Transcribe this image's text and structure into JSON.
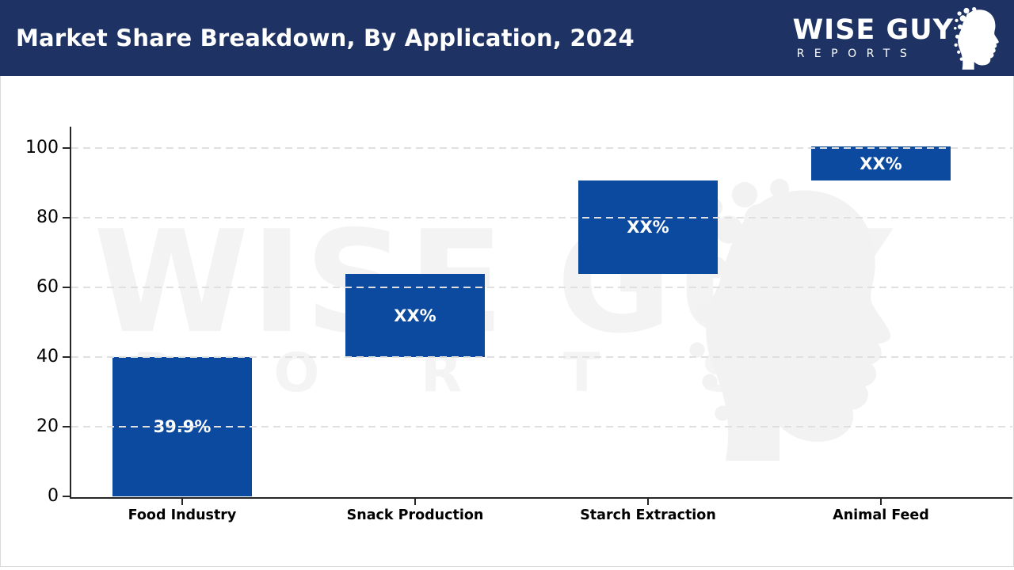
{
  "header": {
    "title": "Market Share Breakdown, By Application, 2024",
    "background": "#1e3363",
    "logo": {
      "line1": "WISE GUY",
      "line2": "REPORTS"
    }
  },
  "watermark": {
    "line1": "WISE GUY",
    "line2": "P O R T S",
    "color": "#f3f3f3"
  },
  "chart_data": {
    "type": "bar",
    "subtype": "waterfall",
    "title": "Market Share Breakdown, By Application, 2024",
    "categories": [
      "Food Industry",
      "Snack Production",
      "Starch Extraction",
      "Animal Feed"
    ],
    "segments": [
      {
        "category": "Food Industry",
        "start": 0,
        "end": 39.9,
        "label": "39.9%"
      },
      {
        "category": "Snack Production",
        "start": 39.9,
        "end": 63.9,
        "label": "XX%"
      },
      {
        "category": "Starch Extraction",
        "start": 63.9,
        "end": 90.6,
        "label": "XX%"
      },
      {
        "category": "Animal Feed",
        "start": 90.6,
        "end": 100.4,
        "label": "XX%"
      }
    ],
    "xlabel": "",
    "ylabel": "",
    "ylim": [
      0,
      106
    ],
    "yticks": [
      0,
      20,
      40,
      60,
      80,
      100
    ],
    "grid": "horizontal-dashed",
    "legend": "none",
    "bar_color": "#0c4aa0",
    "bar_label_color": "#ffffff",
    "axis_color": "#262626",
    "grid_color": "#e0e0e0"
  }
}
